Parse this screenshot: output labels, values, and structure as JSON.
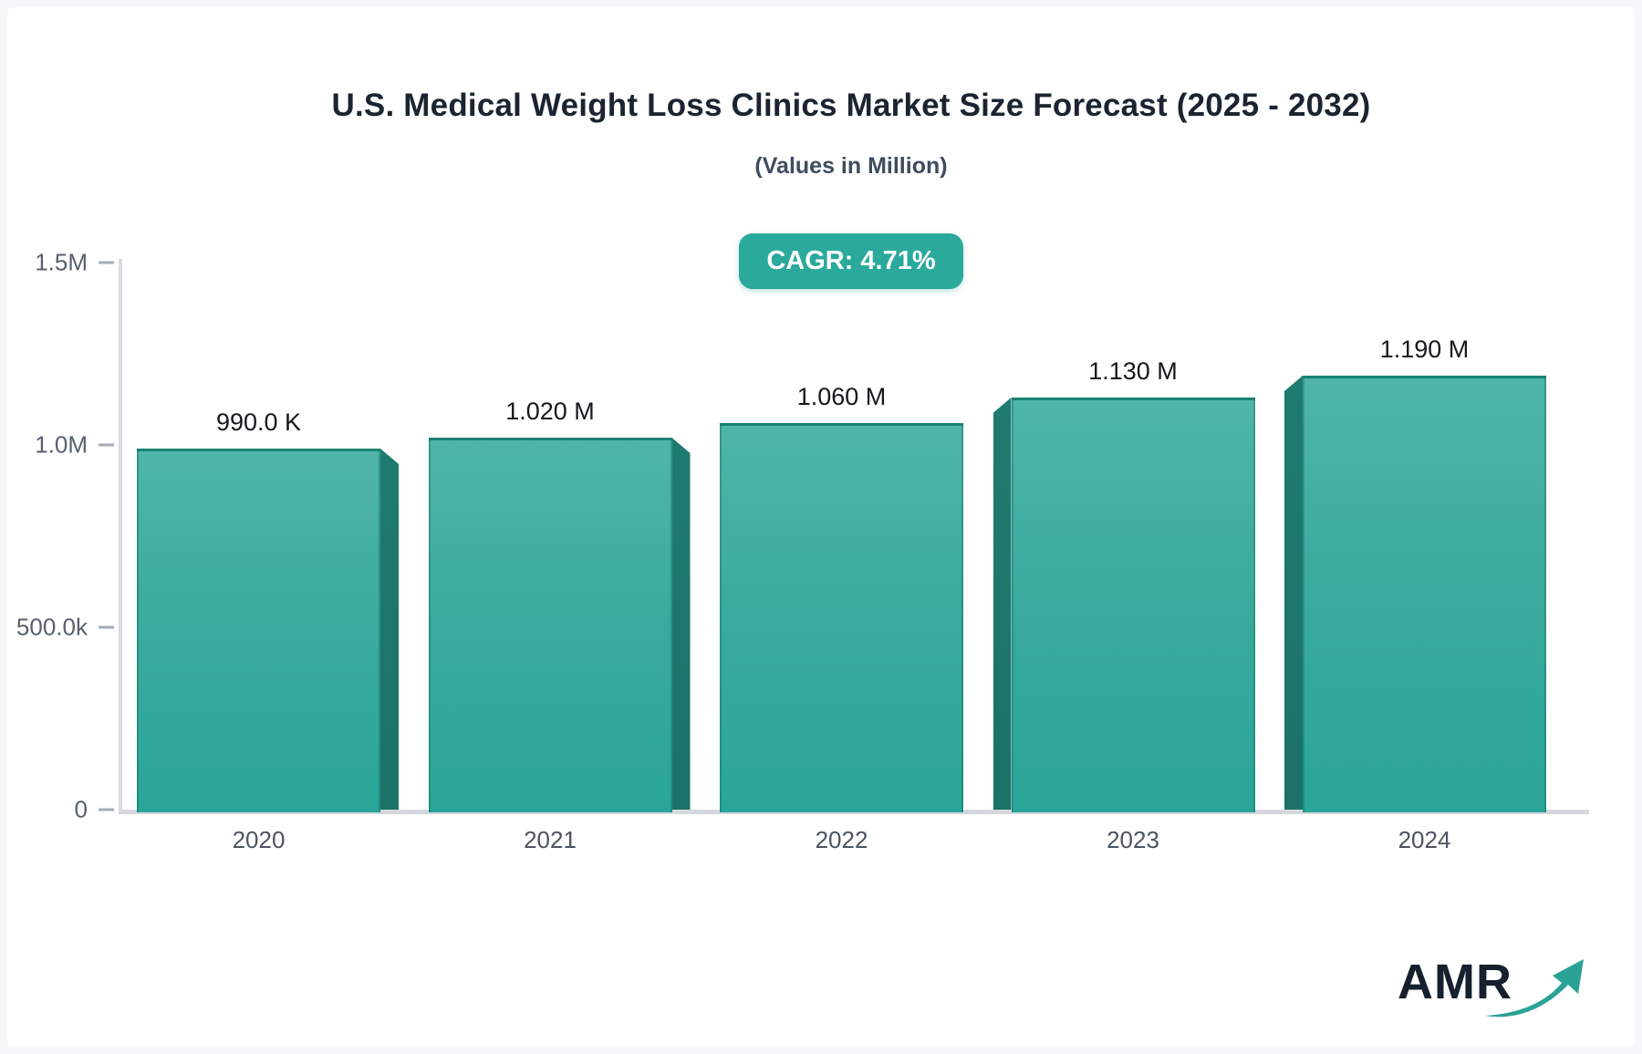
{
  "page": {
    "title": "U.S. Medical Weight Loss Clinics Market Size Forecast (2025 - 2032)",
    "subtitle": "(Values in Million)",
    "cagr_badge": "CAGR: 4.71%"
  },
  "chart_data": {
    "type": "bar",
    "title": "U.S. Medical Weight Loss Clinics Market Size Forecast (2025 - 2032)",
    "subtitle": "(Values in Million)",
    "cagr": "4.71%",
    "categories": [
      "2020",
      "2021",
      "2022",
      "2023",
      "2024"
    ],
    "values": [
      990000,
      1020000,
      1060000,
      1130000,
      1190000
    ],
    "value_labels": [
      "990.0 K",
      "1.020 M",
      "1.060 M",
      "1.130 M",
      "1.190 M"
    ],
    "xlabel": "",
    "ylabel": "",
    "ylim": [
      0,
      1500000
    ],
    "yticks": [
      "1.5M",
      "1.0M",
      "500.0k",
      "0"
    ],
    "ytick_values": [
      1500000,
      1000000,
      500000,
      0
    ],
    "grid": false,
    "legend_position": "none",
    "bar_color_top": "#4fb5a8",
    "bar_color_bottom": "#2aa599",
    "bar_side_color": "#1e7b6f",
    "accent_color": "#2aa99c"
  },
  "branding": {
    "logo_text": "AMR"
  }
}
